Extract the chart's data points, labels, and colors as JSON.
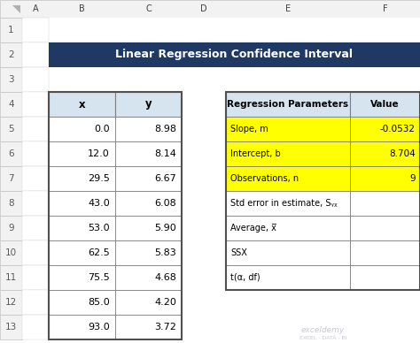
{
  "title": "Linear Regression Confidence Interval",
  "title_bg": "#1F3864",
  "title_color": "#FFFFFF",
  "col_headers": [
    "A",
    "B",
    "C",
    "D",
    "E",
    "F"
  ],
  "xy_header": [
    "x",
    "y"
  ],
  "xy_data": [
    [
      "0.0",
      "8.98"
    ],
    [
      "12.0",
      "8.14"
    ],
    [
      "29.5",
      "6.67"
    ],
    [
      "43.0",
      "6.08"
    ],
    [
      "53.0",
      "5.90"
    ],
    [
      "62.5",
      "5.83"
    ],
    [
      "75.5",
      "4.68"
    ],
    [
      "85.0",
      "4.20"
    ],
    [
      "93.0",
      "3.72"
    ]
  ],
  "reg_header": [
    "Regression Parameters",
    "Value"
  ],
  "reg_data": [
    [
      "Slope, m",
      "-0.0532"
    ],
    [
      "Intercept, b",
      "8.704"
    ],
    [
      "Observations, n",
      "9"
    ],
    [
      "Std error in estimate, Syx",
      ""
    ],
    [
      "Average, x̅",
      ""
    ],
    [
      "SSX",
      ""
    ],
    [
      "t(α, df)",
      ""
    ]
  ],
  "syx_label": "Std error in estimate, Sᵧᵪ",
  "xbar_label": "Average, x̅",
  "yellow_rows": [
    0,
    1,
    2
  ],
  "yellow_color": "#FFFF00",
  "header_bg": "#D6E4F0",
  "grid_color": "#808080",
  "white": "#FFFFFF",
  "col_header_bg": "#F2F2F2",
  "row_header_bg": "#F2F2F2",
  "outer_bg": "#FFFFFF",
  "header_text_color": "#000000",
  "row_num_color": "#595959"
}
